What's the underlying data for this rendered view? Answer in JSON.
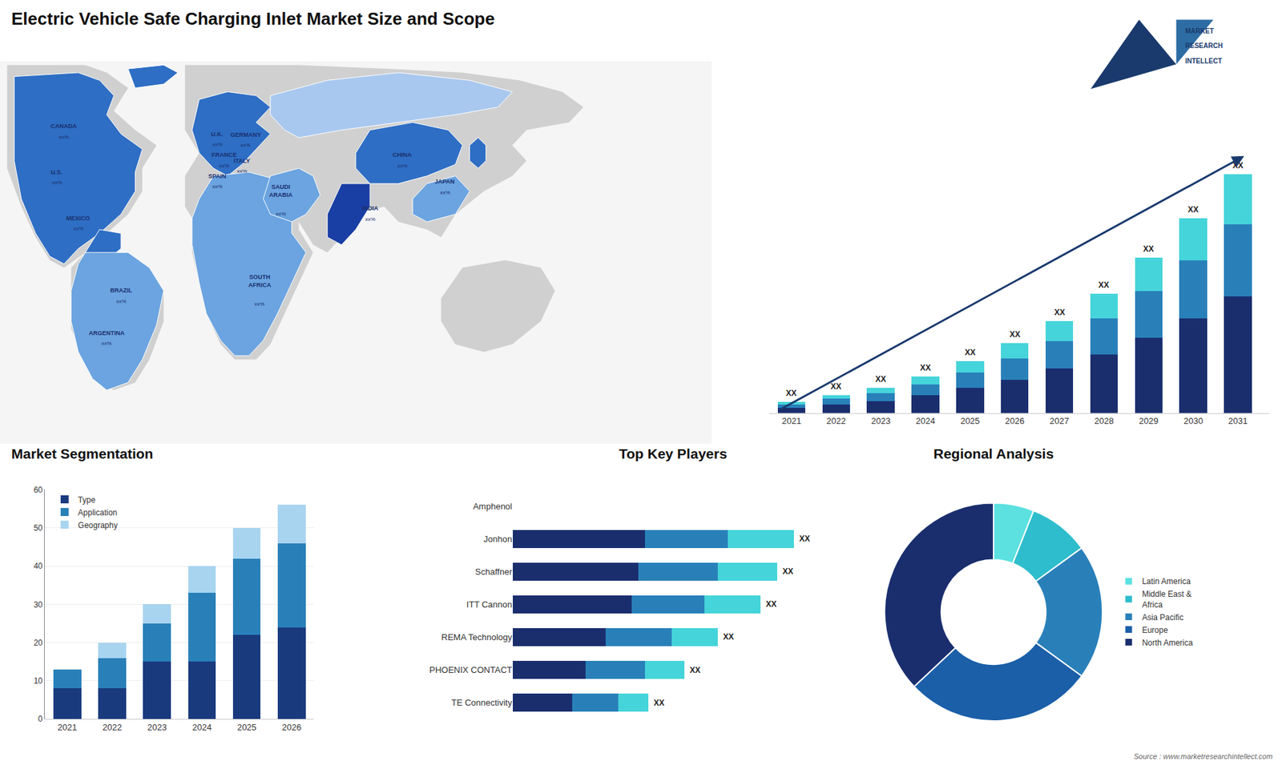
{
  "chart_data": [
    {
      "type": "map",
      "title": "Electric Vehicle Safe Charging Inlet Market Size and Scope",
      "categories": [
        "CANADA",
        "U.S.",
        "MEXICO",
        "BRAZIL",
        "ARGENTINA",
        "U.K.",
        "FRANCE",
        "SPAIN",
        "GERMANY",
        "ITALY",
        "SAUDI\nARABIA",
        "SOUTH\nAFRICA",
        "CHINA",
        "JAPAN",
        "INDIA"
      ],
      "annotations": [
        "xx%",
        "xx%",
        "xx%",
        "xx%",
        "xx%",
        "xx%",
        "xx%",
        "xx%",
        "xx%",
        "xx%",
        "xx%",
        "xx%",
        "xx%",
        "xx%",
        "xx%"
      ]
    },
    {
      "type": "bar",
      "stacked": true,
      "tick_labels": "x",
      "categories": [
        "2021",
        "2022",
        "2023",
        "2024",
        "2025",
        "2026",
        "2027",
        "2028",
        "2029",
        "2030",
        "2031"
      ],
      "series": [
        {
          "color": "#1a2e6e",
          "values": [
            1.0,
            1.6,
            2.2,
            3.2,
            4.5,
            6.0,
            8.0,
            10.5,
            13.5,
            17.0,
            21.0
          ]
        },
        {
          "color": "#2980b9",
          "values": [
            0.6,
            1.0,
            1.4,
            2.0,
            2.8,
            3.8,
            5.0,
            6.5,
            8.5,
            10.5,
            13.0
          ]
        },
        {
          "color": "#45d4da",
          "values": [
            0.4,
            0.6,
            1.0,
            1.4,
            2.0,
            2.8,
            3.5,
            4.5,
            6.0,
            7.5,
            9.0
          ]
        }
      ],
      "ylim": [
        0,
        55.04
      ],
      "annotations": [
        "XX",
        "XX",
        "XX",
        "XX",
        "XX",
        "XX",
        "XX",
        "XX",
        "XX",
        "XX",
        "XX"
      ]
    },
    {
      "type": "bar",
      "stacked": true,
      "title": "Market Segmentation",
      "categories": [
        "2021",
        "2022",
        "2023",
        "2024",
        "2025",
        "2026"
      ],
      "series": [
        {
          "name": "Type",
          "color": "#1a3a7e",
          "values": [
            8,
            8,
            15,
            15,
            22,
            24
          ]
        },
        {
          "name": "Application",
          "color": "#2980b9",
          "values": [
            5,
            8,
            10,
            18,
            20,
            22
          ]
        },
        {
          "name": "Geography",
          "color": "#a8d4f0",
          "values": [
            0,
            4,
            5,
            7,
            8,
            10
          ]
        }
      ],
      "ylim": [
        0,
        60
      ],
      "yticks": [
        0,
        10,
        20,
        30,
        40,
        50,
        60
      ],
      "grid": true,
      "legend": "upper left"
    },
    {
      "type": "bar",
      "stacked": true,
      "orientation": "horizontal",
      "title": "Top Key Players",
      "tick_labels": "y",
      "categories": [
        "Amphenol",
        "Jonhon",
        "Schaffner",
        "ITT Cannon",
        "REMA Technology",
        "PHOENIX CONTACT",
        "TE Connectivity"
      ],
      "series": [
        {
          "color": "#1a2e6e",
          "values": [
            0,
            40,
            38,
            36,
            28,
            22,
            18
          ]
        },
        {
          "color": "#2980b9",
          "values": [
            0,
            25,
            24,
            22,
            20,
            18,
            14
          ]
        },
        {
          "color": "#45d4da",
          "values": [
            0,
            20,
            18,
            17,
            14,
            12,
            9
          ]
        }
      ],
      "xlim": [
        0,
        97
      ],
      "annotations": [
        null,
        "XX",
        "XX",
        "XX",
        "XX",
        "XX",
        "XX"
      ]
    },
    {
      "type": "pie",
      "title": "Regional Analysis",
      "categories": [
        "Latin America",
        "Middle East &\nAfrica",
        "Asia Pacific",
        "Europe",
        "North America"
      ],
      "values": [
        6,
        9,
        20,
        28,
        37
      ],
      "colors": [
        "#5ce0e0",
        "#2dbdcc",
        "#2980b9",
        "#1a5fa8",
        "#1a2e6e"
      ],
      "legend": "right"
    },
    {
      "type": "note",
      "annotations": [
        "MARKET",
        "RESEARCH",
        "INTELLECT",
        "Source : www.marketresearchintellect.com"
      ]
    }
  ]
}
